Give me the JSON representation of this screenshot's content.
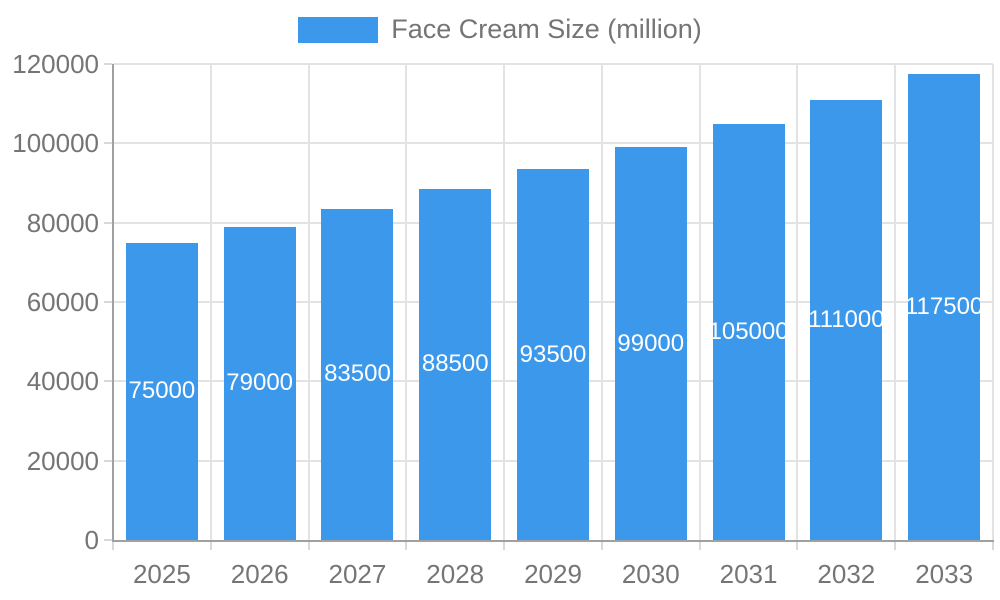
{
  "legend": {
    "label": "Face Cream Size (million)"
  },
  "colors": {
    "bar": "#3B98EB",
    "grid": "#E3E3E3",
    "axis": "#A0A0A0",
    "tick": "#D9D9D9",
    "tick_text": "#757575",
    "bar_label_text": "#FFFFFF",
    "background": "#FFFFFF"
  },
  "chart_data": {
    "type": "bar",
    "title": "Face Cream Size (million)",
    "series_name": "Face Cream Size (million)",
    "categories": [
      "2025",
      "2026",
      "2027",
      "2028",
      "2029",
      "2030",
      "2031",
      "2032",
      "2033"
    ],
    "values": [
      75000,
      79000,
      83500,
      88500,
      93500,
      99000,
      105000,
      111000,
      117500
    ],
    "xlabel": "",
    "ylabel": "",
    "ylim": [
      0,
      120000
    ],
    "yticks": [
      0,
      20000,
      40000,
      60000,
      80000,
      100000,
      120000
    ],
    "grid": true,
    "legend_position": "top",
    "bar_value_labels": "centered-inside-white"
  }
}
